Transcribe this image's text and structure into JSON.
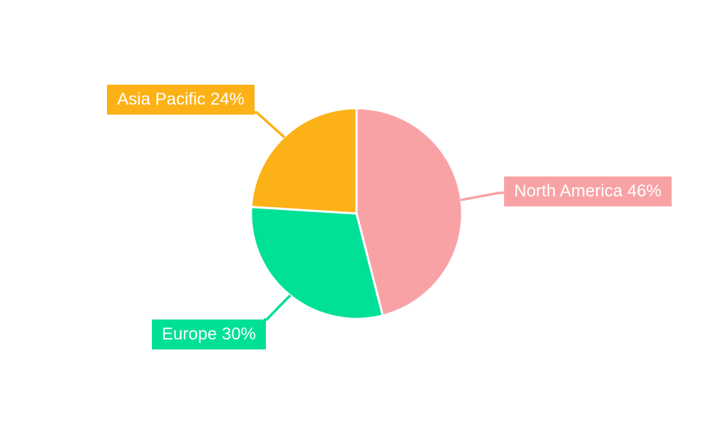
{
  "page": {
    "background_color": "#ffffff"
  },
  "chart_data": {
    "type": "pie",
    "title": "",
    "legend": "none",
    "start_angle": "top (12 o'clock)",
    "direction": "clockwise",
    "label_style": "colored boxes with leader lines, white text",
    "slice_separator_color": "#ffffff",
    "segments": [
      {
        "label": "North America",
        "value": 46,
        "unit": "%",
        "display": "North America 46%",
        "color": "#F9A2A5"
      },
      {
        "label": "Europe",
        "value": 30,
        "unit": "%",
        "display": "Europe 30%",
        "color": "#00E096"
      },
      {
        "label": "Asia Pacific",
        "value": 24,
        "unit": "%",
        "display": "Asia Pacific 24%",
        "color": "#FCB116"
      }
    ]
  }
}
